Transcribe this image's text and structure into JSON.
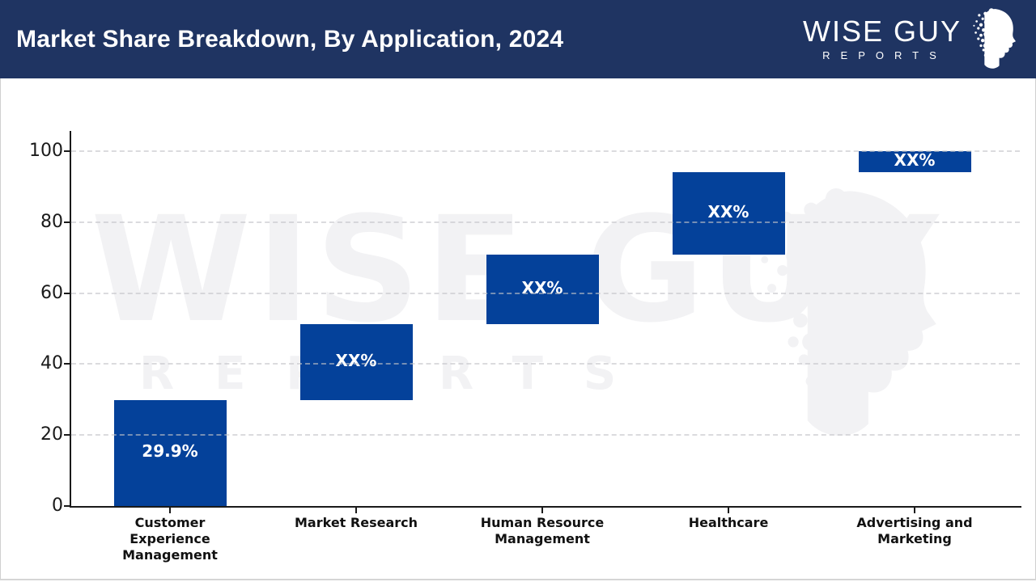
{
  "header": {
    "title": "Market Share Breakdown, By Application, 2024",
    "logo": {
      "line1": "WISE GUY",
      "line2": "REPORTS"
    }
  },
  "watermark": {
    "line1": "WISE GUY",
    "line2": "REPORTS"
  },
  "colors": {
    "header_bg": "#1f3462",
    "bar_fill": "#04419a",
    "bar_label": "#ffffff",
    "watermark": "#f2f2f4",
    "axis": "#1a1a1a",
    "gridline": "#dcdcdc"
  },
  "chart_data": {
    "type": "bar",
    "subtype": "floating-waterfall-share",
    "title": "Market Share Breakdown, By Application, 2024",
    "xlabel": "",
    "ylabel": "",
    "ylim": [
      0,
      105
    ],
    "y_ticks": [
      0,
      20,
      40,
      60,
      80,
      100
    ],
    "grid": "horizontal dashed",
    "legend": "none",
    "categories": [
      "Customer Experience Management",
      "Market Research",
      "Human Resource Management",
      "Healthcare",
      "Advertising and Marketing"
    ],
    "category_label_lines": [
      [
        "Customer",
        "Experience",
        "Management"
      ],
      [
        "Market Research"
      ],
      [
        "Human Resource",
        "Management"
      ],
      [
        "Healthcare"
      ],
      [
        "Advertising and",
        "Marketing"
      ]
    ],
    "segments": [
      {
        "category": "Customer Experience Management",
        "start": 0,
        "end": 29.9,
        "value": 29.9,
        "label": "29.9%"
      },
      {
        "category": "Market Research",
        "start": 29.9,
        "end": 51.2,
        "value": 21.3,
        "label": "XX%"
      },
      {
        "category": "Human Resource Management",
        "start": 51.2,
        "end": 70.9,
        "value": 19.7,
        "label": "XX%"
      },
      {
        "category": "Healthcare",
        "start": 70.9,
        "end": 94.1,
        "value": 23.2,
        "label": "XX%"
      },
      {
        "category": "Advertising and Marketing",
        "start": 94.1,
        "end": 100.0,
        "value": 5.9,
        "label": "XX%"
      }
    ]
  }
}
